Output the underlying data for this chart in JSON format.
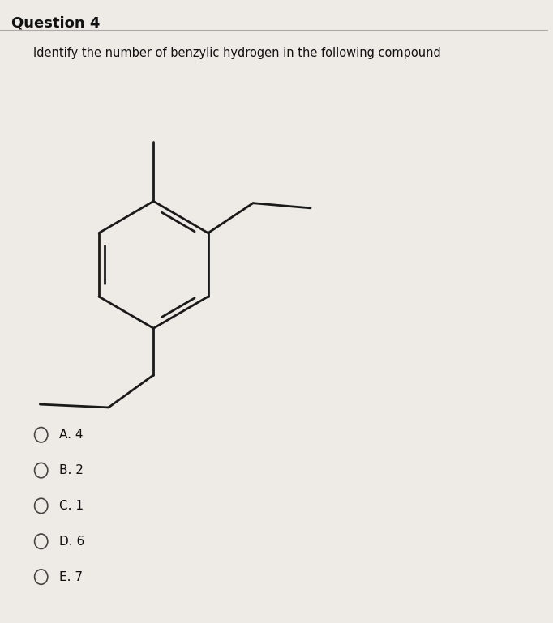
{
  "title": "Question 4",
  "question_text": "Identify the number of benzylic hydrogen in the following compound",
  "bg_color": "#eeebe6",
  "line_color": "#1a1a1a",
  "line_width": 2.0,
  "options": [
    {
      "label": "A.",
      "value": "4"
    },
    {
      "label": "B.",
      "value": "2"
    },
    {
      "label": "C.",
      "value": "1"
    },
    {
      "label": "D.",
      "value": "6"
    },
    {
      "label": "E.",
      "value": "7"
    }
  ],
  "font_size_title": 13,
  "font_size_question": 10.5,
  "font_size_options": 11
}
